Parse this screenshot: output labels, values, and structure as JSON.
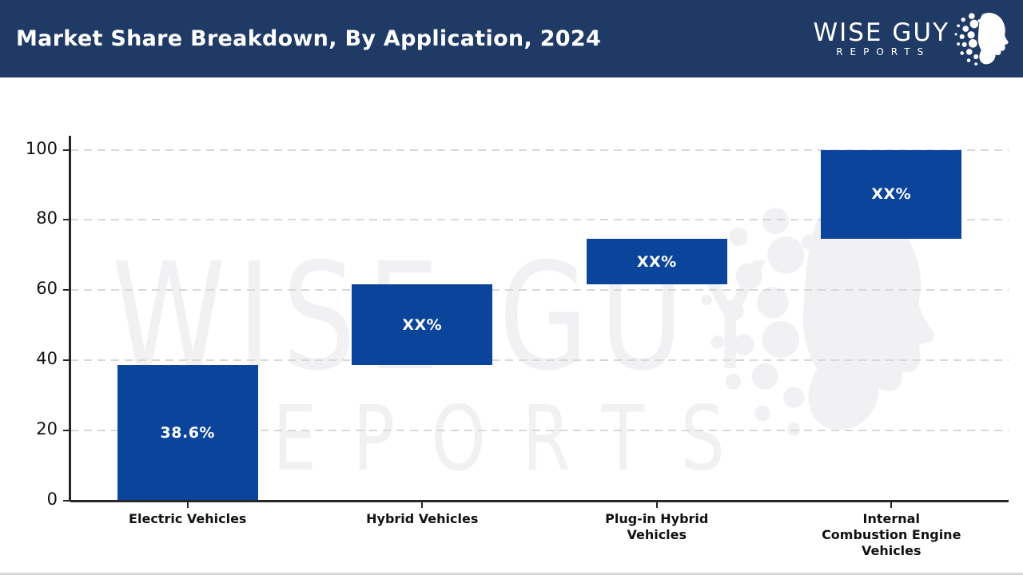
{
  "header": {
    "title": "Market Share Breakdown, By Application, 2024",
    "bg_color": "#203a66",
    "logo": {
      "line1": "WISE GUY",
      "line2": "REPORTS"
    }
  },
  "watermark": {
    "line1": "WISE GUY",
    "line2": "REPORTS"
  },
  "chart_data": {
    "type": "bar",
    "subtype": "waterfall",
    "title": "Market Share Breakdown, By Application, 2024",
    "categories": [
      "Electric Vehicles",
      "Hybrid Vehicles",
      "Plug-in Hybrid Vehicles",
      "Internal Combustion Engine Vehicles"
    ],
    "category_lines": [
      [
        "Electric Vehicles"
      ],
      [
        "Hybrid Vehicles"
      ],
      [
        "Plug-in Hybrid",
        "Vehicles"
      ],
      [
        "Internal",
        "Combustion Engine",
        "Vehicles"
      ]
    ],
    "segments": [
      {
        "category": "Electric Vehicles",
        "start": 0,
        "end": 38.6,
        "value": 38.6,
        "label": "38.6%"
      },
      {
        "category": "Hybrid Vehicles",
        "start": 38.6,
        "end": 61.6,
        "value": 23.0,
        "label": "XX%"
      },
      {
        "category": "Plug-in Hybrid Vehicles",
        "start": 61.6,
        "end": 74.6,
        "value": 13.0,
        "label": "XX%"
      },
      {
        "category": "Internal Combustion Engine Vehicles",
        "start": 74.6,
        "end": 100,
        "value": 25.4,
        "label": "XX%"
      }
    ],
    "y_ticks": [
      0,
      20,
      40,
      60,
      80,
      100
    ],
    "ylim": [
      0,
      104
    ],
    "xlabel": "",
    "ylabel": "",
    "grid": true,
    "legend": false,
    "colors": {
      "bar": "#0b449b",
      "grid": "#d8d8d8",
      "axis": "#262626",
      "bar_label": "#ffffff",
      "tick_label": "#111111"
    }
  }
}
